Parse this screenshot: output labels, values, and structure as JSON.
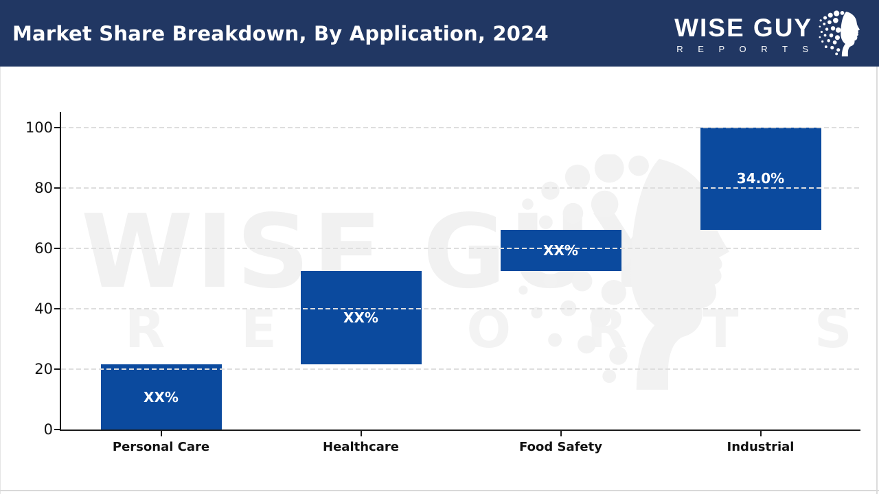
{
  "header": {
    "title": "Market Share Breakdown, By Application, 2024",
    "logo": {
      "wordmark": "WISE GUY",
      "subtitle": "R E P O R T S"
    }
  },
  "watermark": {
    "wordmark": "WISE GUY",
    "subtitle": "R E P O R T S"
  },
  "chart_data": {
    "type": "bar",
    "subtype": "floating-segment-waterfall",
    "title": "Market Share Breakdown, By Application, 2024",
    "categories": [
      "Personal Care",
      "Healthcare",
      "Food Safety",
      "Industrial"
    ],
    "segments": [
      {
        "category": "Personal Care",
        "start": 0,
        "end": 21.5,
        "label": "XX%"
      },
      {
        "category": "Healthcare",
        "start": 21.5,
        "end": 52.5,
        "label": "XX%"
      },
      {
        "category": "Food Safety",
        "start": 52.5,
        "end": 66,
        "label": "XX%"
      },
      {
        "category": "Industrial",
        "start": 66,
        "end": 100,
        "label": "34.0%"
      }
    ],
    "xlabel": "",
    "ylabel": "",
    "ylim": [
      0,
      105
    ],
    "yticks": [
      0,
      20,
      40,
      60,
      80,
      100
    ],
    "grid": "horizontal-dashed",
    "legend": "none",
    "bar_color": "#0b4a9e",
    "bar_label_color": "#ffffff"
  },
  "colors": {
    "header_bg": "#213763",
    "header_text": "#ffffff",
    "bar": "#0b4a9e",
    "grid": "#dedede",
    "axis": "#1a1a1a",
    "watermark": "#f1f1f1",
    "watermark_sub": "#f3f3f3",
    "edge": "#d9d9d9"
  }
}
